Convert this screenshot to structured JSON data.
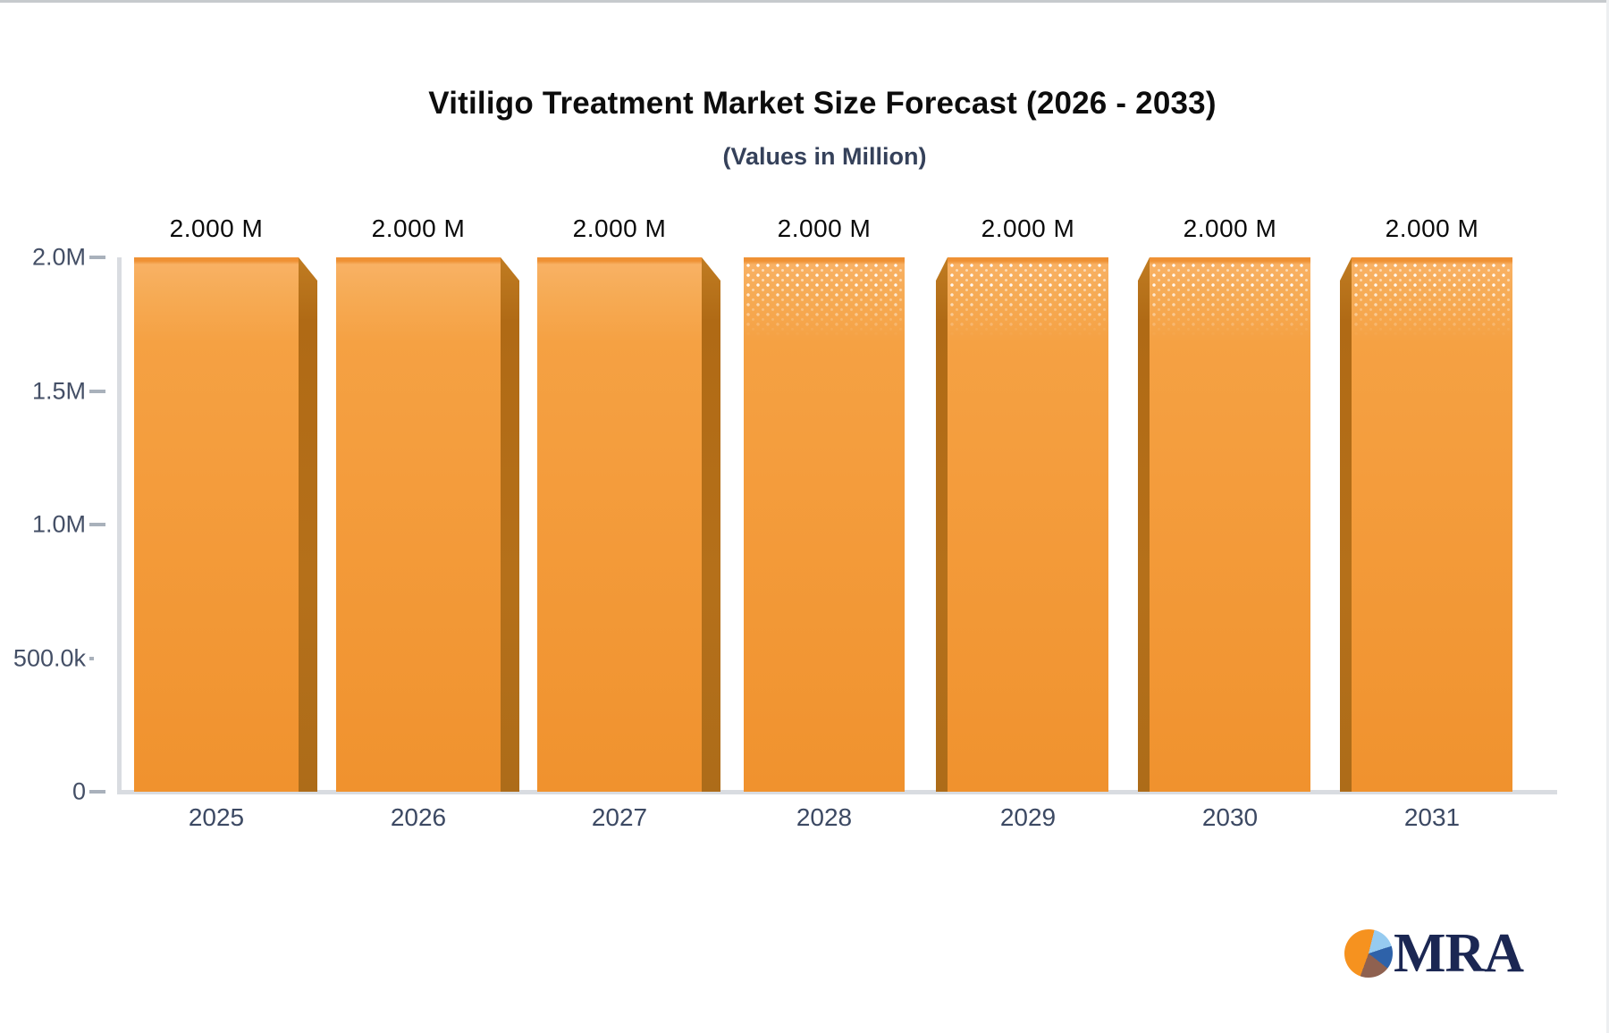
{
  "title": "Vitiligo Treatment Market Size Forecast (2026 - 2033)",
  "subtitle": "(Values in Million)",
  "chart_data": {
    "type": "bar",
    "title": "Vitiligo Treatment Market Size Forecast (2026 - 2033)",
    "subtitle": "(Values in Million)",
    "unit": "Million",
    "categories": [
      "2025",
      "2026",
      "2027",
      "2028",
      "2029",
      "2030",
      "2031"
    ],
    "values": [
      2.0,
      2.0,
      2.0,
      2.0,
      2.0,
      2.0,
      2.0
    ],
    "value_labels": [
      "2.000 M",
      "2.000 M",
      "2.000 M",
      "2.000 M",
      "2.000 M",
      "2.000 M",
      "2.000 M"
    ],
    "y_axis": {
      "ticks": [
        "0",
        "500.0k",
        "1.0M",
        "1.5M",
        "2.0M"
      ],
      "min": 0,
      "max": 2000000
    },
    "grid": false,
    "legend": false,
    "styles": {
      "bar_color_top": "#f8b164",
      "bar_color_bottom": "#f0922e",
      "bar_top_edge": "#ef9134",
      "bevel_color": "#b5701a",
      "bevel_side": [
        "right",
        "right",
        "right",
        "none",
        "left",
        "left",
        "left"
      ],
      "dotted_top": [
        false,
        false,
        false,
        true,
        true,
        true,
        true
      ],
      "axis_line_color": "#d9dce1",
      "tick_text_color": "#444f66",
      "value_text_color": "#0b0b0b"
    }
  },
  "logo": {
    "text": "MRA",
    "text_color": "#1b2753",
    "pie_icon_colors": {
      "orange": "#f6921f",
      "light_blue": "#96cbf0",
      "dark_blue": "#2e62a9",
      "brown": "#8f6150"
    }
  }
}
